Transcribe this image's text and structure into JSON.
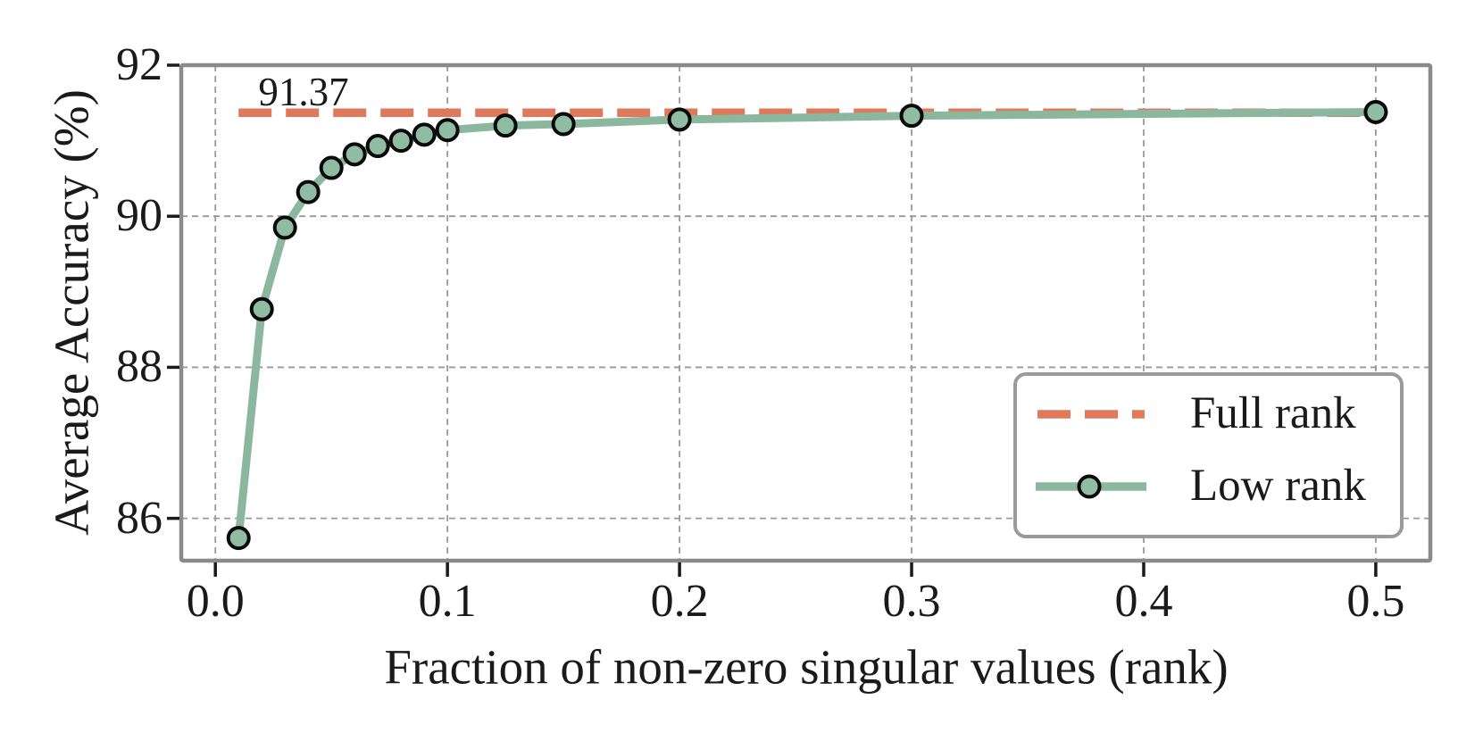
{
  "figure": {
    "background": "#ffffff"
  },
  "chart_data": {
    "type": "line",
    "title": "",
    "xlabel": "Fraction of non-zero singular values (rank)",
    "ylabel": "Average Accuracy (%)",
    "xlim": [
      -0.0147,
      0.5235
    ],
    "ylim": [
      85.44,
      92.0
    ],
    "grid": true,
    "xticks": [
      0.0,
      0.1,
      0.2,
      0.3,
      0.4,
      0.5
    ],
    "xtick_labels": [
      "0.0",
      "0.1",
      "0.2",
      "0.3",
      "0.4",
      "0.5"
    ],
    "yticks": [
      86,
      88,
      90,
      92
    ],
    "ytick_labels": [
      "86",
      "88",
      "90",
      "92"
    ],
    "series": [
      {
        "name": "Full rank",
        "style": "dashed-horizontal-line",
        "value": 91.37,
        "x_range": [
          0.01,
          0.5
        ],
        "color": "#e0795b"
      },
      {
        "name": "Low rank",
        "style": "line-with-circle-markers",
        "color": "#8ab79d",
        "marker_fill": "#8fbca3",
        "marker_edge": "#0a0a0a",
        "x": [
          0.01,
          0.02,
          0.03,
          0.04,
          0.05,
          0.06,
          0.07,
          0.08,
          0.09,
          0.1,
          0.125,
          0.15,
          0.2,
          0.3,
          0.5
        ],
        "y": [
          85.74,
          88.77,
          89.85,
          90.32,
          90.64,
          90.82,
          90.93,
          91.0,
          91.08,
          91.14,
          91.2,
          91.22,
          91.28,
          91.33,
          91.38
        ]
      }
    ],
    "annotation": {
      "text": "91.37"
    },
    "legend": {
      "position": "lower right",
      "entries": [
        {
          "label": "Full rank"
        },
        {
          "label": "Low rank"
        }
      ]
    },
    "colors": {
      "full_rank": "#e0795b",
      "low_rank": "#8ab79d",
      "marker_fill": "#8fbca3",
      "marker_edge": "#0a0a0a",
      "spine": "#8a8a8a",
      "grid": "#999999",
      "tick": "#1a1a1a",
      "text": "#1a1a1a",
      "legend_border": "#9a9a9a"
    }
  }
}
